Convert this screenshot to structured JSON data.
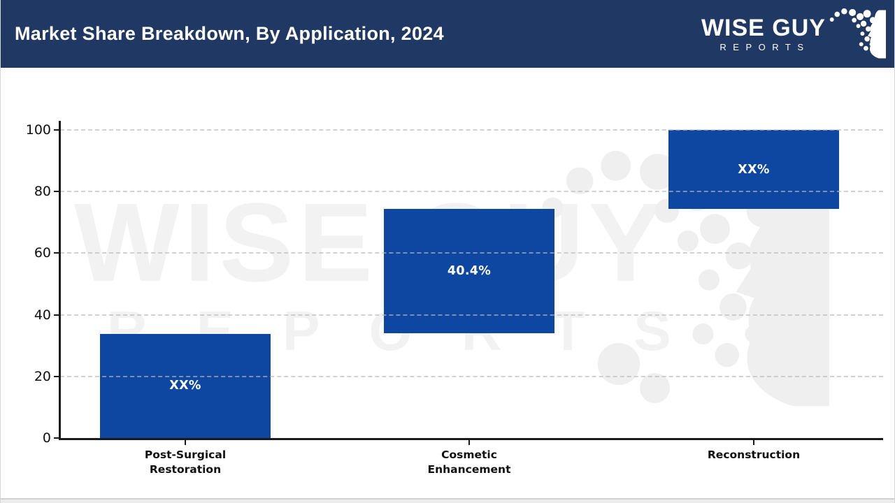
{
  "header": {
    "title": "Market Share Breakdown, By Application, 2024",
    "brand": {
      "line1": "WISE GUY",
      "line2": "REPORTS"
    }
  },
  "watermark": {
    "line1": "WISE GUY",
    "line2": "REPORTS"
  },
  "colors": {
    "header_bg": "#1f3864",
    "bar": "#0d47a1",
    "bar_label": "#ffffff",
    "watermark": "#f2f2f2",
    "grid": "#bababa",
    "axis": "#1a1a1a"
  },
  "chart_data": {
    "type": "bar",
    "subtype": "waterfall",
    "title": "Market Share Breakdown, By Application, 2024",
    "xlabel": "",
    "ylabel": "",
    "categories": [
      "Post-Surgical Restoration",
      "Cosmetic Enhancement",
      "Reconstruction"
    ],
    "segments": [
      {
        "category": "Post-Surgical Restoration",
        "start": 0,
        "end": 33.9,
        "label": "XX%"
      },
      {
        "category": "Cosmetic Enhancement",
        "start": 33.9,
        "end": 74.3,
        "label": "40.4%"
      },
      {
        "category": "Reconstruction",
        "start": 74.3,
        "end": 100,
        "label": "XX%"
      }
    ],
    "values_shown": [
      "XX%",
      "40.4%",
      "XX%"
    ],
    "y_ticks": [
      0,
      20,
      40,
      60,
      80,
      100
    ],
    "ylim": [
      0,
      100
    ],
    "grid": "horizontal-dashed",
    "legend": "none"
  }
}
